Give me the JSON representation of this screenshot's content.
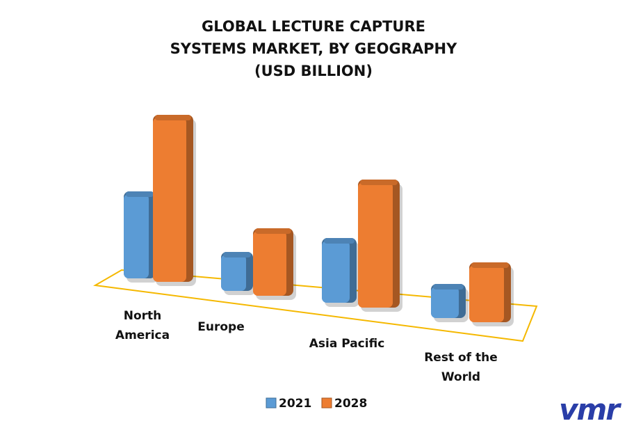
{
  "chart_data": {
    "type": "bar3d",
    "title": "GLOBAL LECTURE CAPTURE SYSTEMS MARKET, BY GEOGRAPHY (USD BILLION)",
    "categories": [
      "North America",
      "Europe",
      "Asia Pacific",
      "Rest of the World"
    ],
    "series": [
      {
        "name": "2021",
        "color": "#5b9bd5",
        "values": [
          125,
          56,
          93,
          49
        ]
      },
      {
        "name": "2028",
        "color": "#ed7d31",
        "values": [
          240,
          97,
          184,
          86
        ]
      }
    ],
    "floor_color": "#f5b800"
  },
  "logo": "vmr"
}
